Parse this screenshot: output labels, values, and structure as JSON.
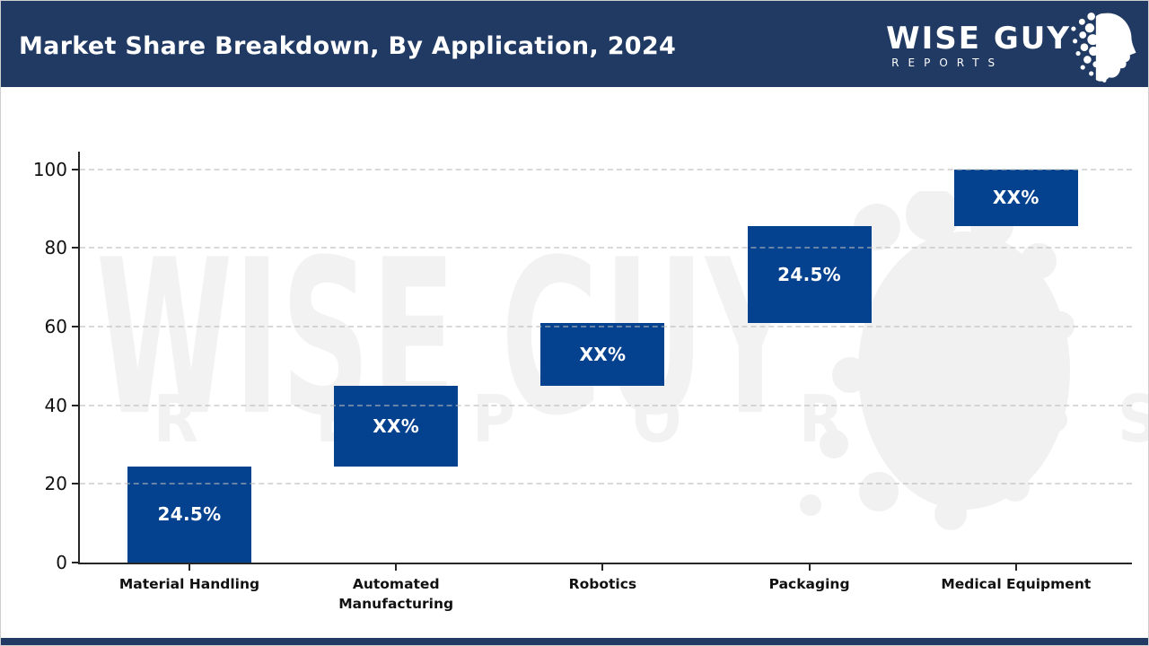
{
  "header": {
    "title": "Market Share Breakdown, By Application, 2024",
    "logo": {
      "line1": "WISE GUY",
      "line2": "REPORTS"
    }
  },
  "watermark": {
    "line1": "WISE GUY",
    "line2": "R E P O R T S"
  },
  "colors": {
    "header_bg": "#213a64",
    "bar": "#04418f",
    "bar_label_text": "#ffffff",
    "axis": "#262626",
    "gridline": "#d9d9d9",
    "watermark": "#f2f2f2"
  },
  "chart_data": {
    "type": "bar",
    "subtype": "waterfall",
    "title": "Market Share Breakdown, By Application, 2024",
    "xlabel": "",
    "ylabel": "",
    "ylim": [
      0,
      100
    ],
    "yticks": [
      0,
      20,
      40,
      60,
      80,
      100
    ],
    "grid": "horizontal dashed",
    "legend": "none",
    "categories": [
      "Material Handling",
      "Automated Manufacturing",
      "Robotics",
      "Packaging",
      "Medical Equipment"
    ],
    "segments": [
      {
        "category": "Material Handling",
        "display_category": "Material Handling",
        "start": 0,
        "end": 24.5,
        "value": 24.5,
        "label": "24.5%"
      },
      {
        "category": "Automated Manufacturing",
        "display_category": "Automated\nManufacturing",
        "start": 24.5,
        "end": 45,
        "value": 20.5,
        "label": "XX%"
      },
      {
        "category": "Robotics",
        "display_category": "Robotics",
        "start": 45,
        "end": 61,
        "value": 16,
        "label": "XX%"
      },
      {
        "category": "Packaging",
        "display_category": "Packaging",
        "start": 61,
        "end": 85.5,
        "value": 24.5,
        "label": "24.5%"
      },
      {
        "category": "Medical Equipment",
        "display_category": "Medical Equipment",
        "start": 85.5,
        "end": 100,
        "value": 14.5,
        "label": "XX%"
      }
    ]
  }
}
